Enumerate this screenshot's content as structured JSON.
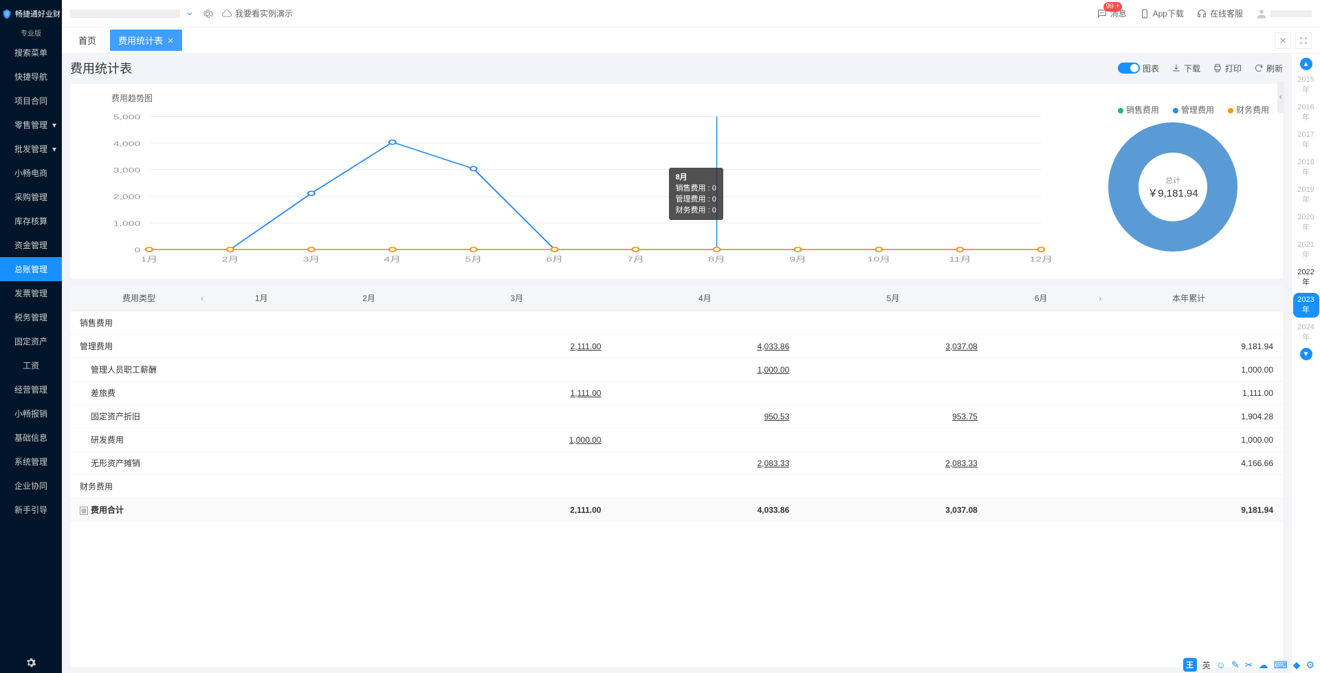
{
  "brand": {
    "name": "畅捷通好业财",
    "edition": "专业版"
  },
  "topbar": {
    "org_placeholder": "",
    "demo_label": "我要看实例演示",
    "msg_label": "消息",
    "msg_badge": "99 +",
    "app_label": "App下载",
    "support_label": "在线客服"
  },
  "sidebar": {
    "items": [
      {
        "label": "搜索菜单"
      },
      {
        "label": "快捷导航"
      },
      {
        "label": "项目合同"
      },
      {
        "label": "零售管理",
        "caret": true
      },
      {
        "label": "批发管理",
        "caret": true
      },
      {
        "label": "小畅电商"
      },
      {
        "label": "采购管理"
      },
      {
        "label": "库存核算"
      },
      {
        "label": "资金管理"
      },
      {
        "label": "总账管理",
        "active": true
      },
      {
        "label": "发票管理"
      },
      {
        "label": "税务管理"
      },
      {
        "label": "固定资产"
      },
      {
        "label": "工资"
      },
      {
        "label": "经营管理"
      },
      {
        "label": "小畅报销"
      },
      {
        "label": "基础信息"
      },
      {
        "label": "系统管理"
      },
      {
        "label": "企业协同"
      },
      {
        "label": "新手引导"
      }
    ]
  },
  "tabs": {
    "home": "首页",
    "active": "费用统计表"
  },
  "page": {
    "title": "费用统计表",
    "actions": {
      "chart": "图表",
      "download": "下载",
      "print": "打印",
      "refresh": "刷新"
    }
  },
  "line_chart": {
    "title": "费用趋势图",
    "months": [
      "1月",
      "2月",
      "3月",
      "4月",
      "5月",
      "6月",
      "7月",
      "8月",
      "9月",
      "10月",
      "11月",
      "12月"
    ],
    "ylim": [
      0,
      5000
    ],
    "ytick_step": 1000,
    "series": [
      {
        "name": "销售费用",
        "color": "#19be6b",
        "values": [
          0,
          0,
          0,
          0,
          0,
          0,
          0,
          0,
          0,
          0,
          0,
          0
        ]
      },
      {
        "name": "管理费用",
        "color": "#2d8cf0",
        "values": [
          0,
          0,
          2111,
          4034,
          3037,
          0,
          0,
          0,
          0,
          0,
          0,
          0
        ]
      },
      {
        "name": "财务费用",
        "color": "#ff9900",
        "values": [
          0,
          0,
          0,
          0,
          0,
          0,
          0,
          0,
          0,
          0,
          0,
          0
        ]
      }
    ],
    "grid_color": "#eeeeee",
    "axis_color": "#cccccc",
    "label_color": "#999999",
    "tooltip": {
      "x_index": 7,
      "title": "8月",
      "rows": [
        "销售费用 : 0",
        "管理费用 : 0",
        "财务费用 : 0"
      ]
    }
  },
  "donut": {
    "color": "#5b9bd5",
    "center_label": "总计",
    "center_value": "￥9,181.94"
  },
  "table": {
    "type_header": "费用类型",
    "months": [
      "1月",
      "2月",
      "3月",
      "4月",
      "5月",
      "6月"
    ],
    "total_header": "本年累计",
    "rows": [
      {
        "label": "销售费用",
        "cells": [
          "",
          "",
          "",
          "",
          "",
          ""
        ],
        "total": ""
      },
      {
        "label": "管理费用",
        "cells": [
          "",
          "",
          "2,111.00",
          "4,033.86",
          "3,037.08",
          ""
        ],
        "total": "9,181.94",
        "link": true
      },
      {
        "label": "管理人员职工薪酬",
        "indent": true,
        "cells": [
          "",
          "",
          "",
          "1,000.00",
          "",
          ""
        ],
        "total": "1,000.00",
        "link": true
      },
      {
        "label": "差旅费",
        "indent": true,
        "cells": [
          "",
          "",
          "1,111.00",
          "",
          "",
          ""
        ],
        "total": "1,111.00",
        "link": true
      },
      {
        "label": "固定资产折旧",
        "indent": true,
        "cells": [
          "",
          "",
          "",
          "950.53",
          "953.75",
          ""
        ],
        "total": "1,904.28",
        "link": true
      },
      {
        "label": "研发费用",
        "indent": true,
        "cells": [
          "",
          "",
          "1,000.00",
          "",
          "",
          ""
        ],
        "total": "1,000.00",
        "link": true
      },
      {
        "label": "无形资产摊销",
        "indent": true,
        "cells": [
          "",
          "",
          "",
          "2,083.33",
          "2,083.33",
          ""
        ],
        "total": "4,166.66",
        "link": true
      },
      {
        "label": "财务费用",
        "cells": [
          "",
          "",
          "",
          "",
          "",
          ""
        ],
        "total": ""
      }
    ],
    "total_row": {
      "label": "费用合计",
      "cells": [
        "",
        "",
        "2,111.00",
        "4,033.86",
        "3,037.08",
        ""
      ],
      "total": "9,181.94"
    }
  },
  "years": {
    "list": [
      "2015年",
      "2016年",
      "2017年",
      "2018年",
      "2019年",
      "2020年",
      "2021年",
      "2022年",
      "2023年",
      "2024年"
    ],
    "current": "2022年",
    "selected": "2023年"
  },
  "ime": {
    "label": "王",
    "lang": "英"
  }
}
